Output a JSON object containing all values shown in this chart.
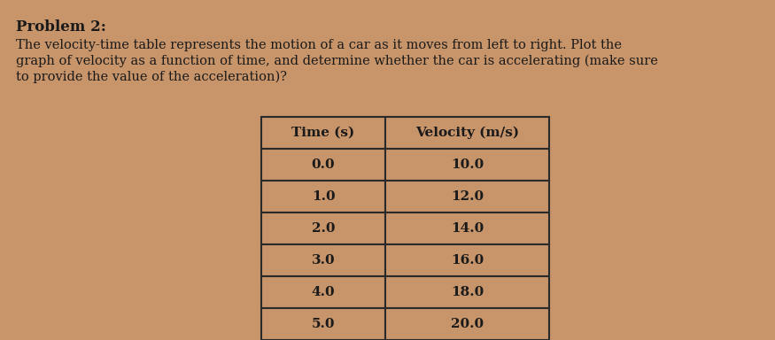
{
  "title": "Problem 2:",
  "description_line1": "The velocity-time table represents the motion of a car as it moves from left to right. Plot the",
  "description_line2": "graph of velocity as a function of time, and determine whether the car is accelerating (make sure",
  "description_line3": "to provide the value of the acceleration)?",
  "col1_header": "Time (s)",
  "col2_header": "Velocity (m/s)",
  "time_values": [
    0.0,
    1.0,
    2.0,
    3.0,
    4.0,
    5.0
  ],
  "velocity_values": [
    10.0,
    12.0,
    14.0,
    16.0,
    18.0,
    20.0
  ],
  "bg_color": "#c8946a",
  "header_bg": "#c8946a",
  "cell_bg": "#c8946a",
  "border_color": "#2a2a2a",
  "text_color": "#1a1a1a",
  "title_fontsize": 12,
  "body_fontsize": 10.5,
  "table_fontsize": 11
}
